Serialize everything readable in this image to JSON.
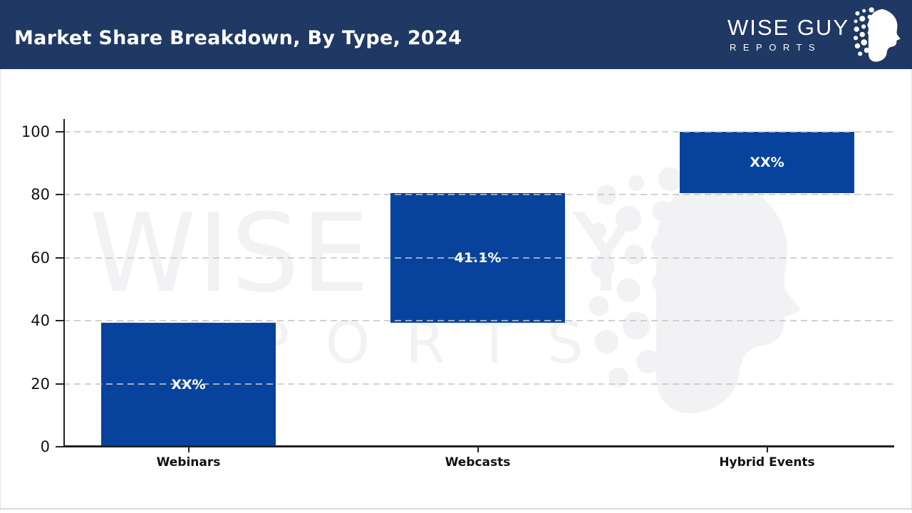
{
  "header": {
    "title": "Market Share Breakdown, By Type, 2024",
    "logo": {
      "name": "WISE GUY",
      "tagline": "REPORTS"
    }
  },
  "watermark": {
    "text": "WISE GUY",
    "tagline": "REPORTS"
  },
  "chart_data": {
    "type": "bar",
    "variant": "waterfall",
    "title": "Market Share Breakdown, By Type, 2024",
    "categories": [
      "Webinars",
      "Webcasts",
      "Hybrid Events"
    ],
    "segments": [
      {
        "category": "Webinars",
        "start": 0,
        "end": 39.4,
        "value": 39.4,
        "label": "XX%"
      },
      {
        "category": "Webcasts",
        "start": 39.4,
        "end": 80.5,
        "value": 41.1,
        "label": "41.1%"
      },
      {
        "category": "Hybrid Events",
        "start": 80.5,
        "end": 100,
        "value": 19.5,
        "label": "XX%"
      }
    ],
    "xlabel": "",
    "ylabel": "",
    "ylim": [
      0,
      100
    ],
    "yticks": [
      0,
      20,
      40,
      60,
      80,
      100
    ],
    "grid": {
      "horizontal": true,
      "style": "dashed"
    },
    "legend": "none"
  },
  "colors": {
    "header_bg": "#1f3864",
    "bar": "#07439d",
    "bar_label": "#ffffff",
    "axis": "#222222",
    "gridline": "#c6c6c6",
    "watermark": "#f2f2f4",
    "page_bg": "#ffffff",
    "border": "#d9d9d9"
  }
}
